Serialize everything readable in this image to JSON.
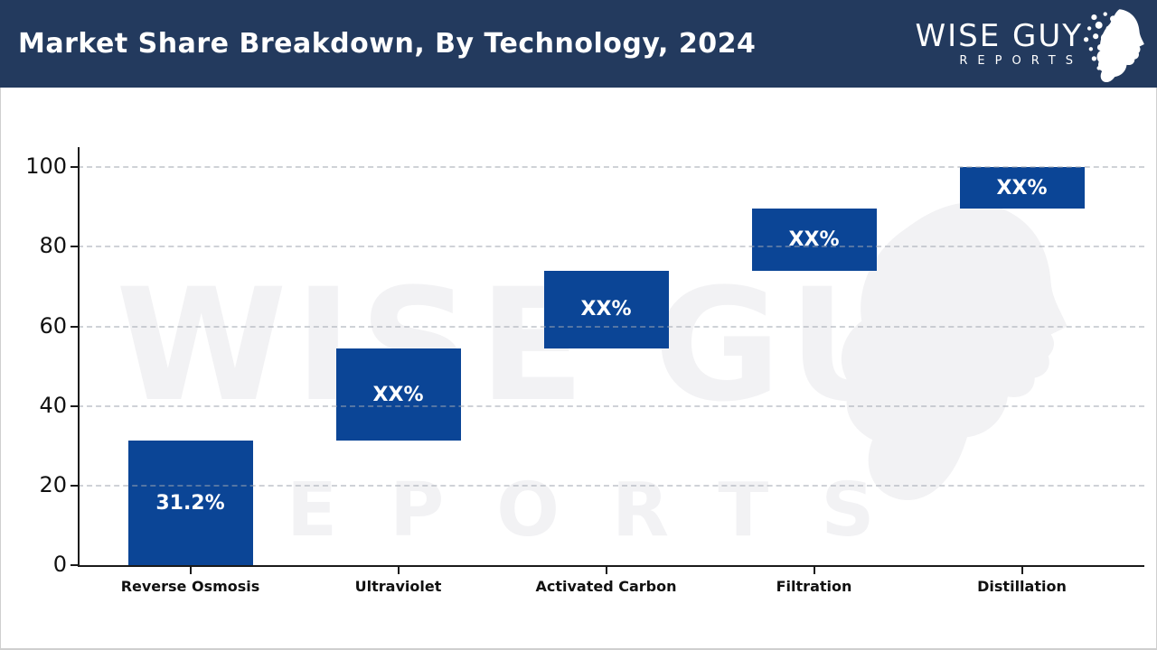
{
  "header": {
    "title": "Market Share Breakdown, By Technology, 2024",
    "bg_color": "#233a5e",
    "logo": {
      "line1": "WISE GUY",
      "line2": "REPORTS"
    }
  },
  "watermark": {
    "line1": "WISE GUY",
    "line2": "REPORTS"
  },
  "chart_data": {
    "type": "bar",
    "subtype": "waterfall",
    "title": "Market Share Breakdown, By Technology, 2024",
    "categories": [
      "Reverse Osmosis",
      "Ultraviolet",
      "Activated Carbon",
      "Filtration",
      "Distillation"
    ],
    "segments": [
      {
        "category": "Reverse Osmosis",
        "start": 0,
        "end": 31.2,
        "label": "31.2%"
      },
      {
        "category": "Ultraviolet",
        "start": 31.2,
        "end": 54.5,
        "label": "XX%"
      },
      {
        "category": "Activated Carbon",
        "start": 54.5,
        "end": 74.0,
        "label": "XX%"
      },
      {
        "category": "Filtration",
        "start": 74.0,
        "end": 89.5,
        "label": "XX%"
      },
      {
        "category": "Distillation",
        "start": 89.5,
        "end": 100.0,
        "label": "XX%"
      }
    ],
    "y_ticks": [
      0,
      20,
      40,
      60,
      80,
      100
    ],
    "ylim": [
      0,
      100
    ],
    "xlabel": "",
    "ylabel": "",
    "bar_color": "#0b4596",
    "grid": "horizontal-dashed",
    "legend": "none"
  }
}
